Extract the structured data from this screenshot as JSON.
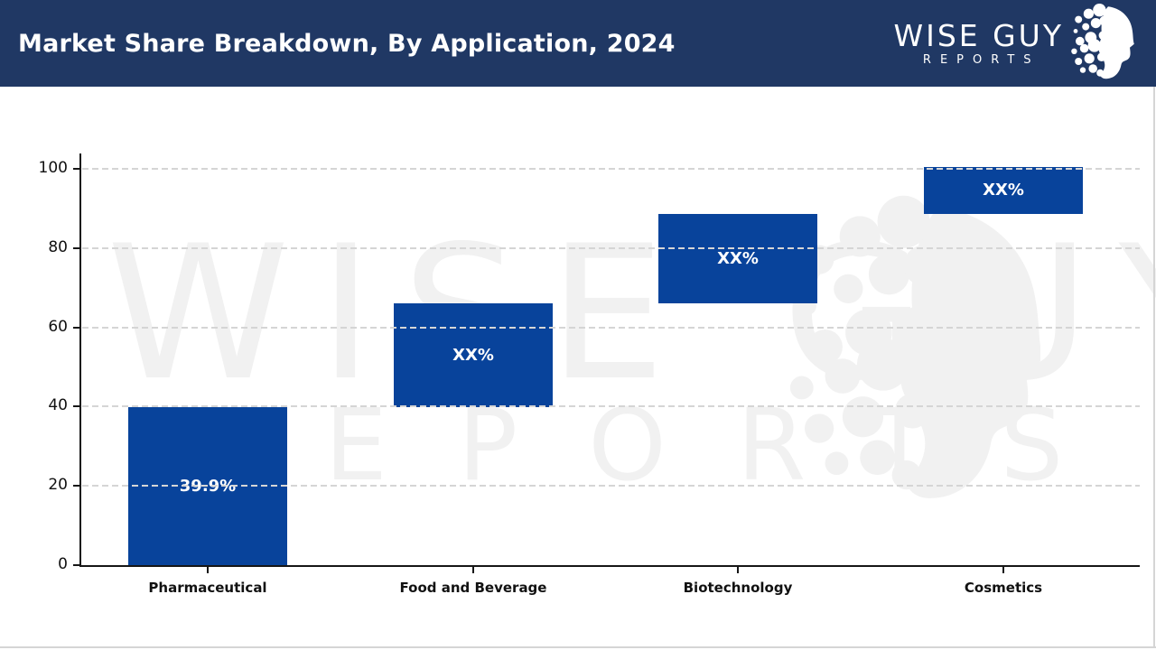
{
  "header": {
    "title": "Market Share Breakdown, By Application, 2024",
    "logo_line1": "WISE GUY",
    "logo_line2": "REPORTS"
  },
  "watermark": {
    "line1": "WISE GUY",
    "line2": "REPORTS"
  },
  "colors": {
    "header_bg": "#203864",
    "bar_blue": "#08439b",
    "axis": "#161616",
    "gridline": "#d5d5d5",
    "watermark": "#f1f1f1",
    "value_label": "#ffffff"
  },
  "chart_data": {
    "type": "bar",
    "subtype": "waterfall",
    "title": "Market Share Breakdown, By Application, 2024",
    "categories": [
      "Pharmaceutical",
      "Food and Beverage",
      "Biotechnology",
      "Cosmetics"
    ],
    "segments": [
      {
        "category": "Pharmaceutical",
        "start": 0,
        "end": 39.9,
        "value_label": "39.9%"
      },
      {
        "category": "Food and Beverage",
        "start": 39.9,
        "end": 66.1,
        "value_label": "XX%"
      },
      {
        "category": "Biotechnology",
        "start": 66.1,
        "end": 88.6,
        "value_label": "XX%"
      },
      {
        "category": "Cosmetics",
        "start": 88.6,
        "end": 100.5,
        "value_label": "XX%"
      }
    ],
    "y_ticks": [
      0,
      20,
      40,
      60,
      80,
      100
    ],
    "ylim": [
      0,
      105
    ],
    "xlabel": "",
    "ylabel": "",
    "grid": "dashed-horizontal",
    "legend": "none"
  }
}
